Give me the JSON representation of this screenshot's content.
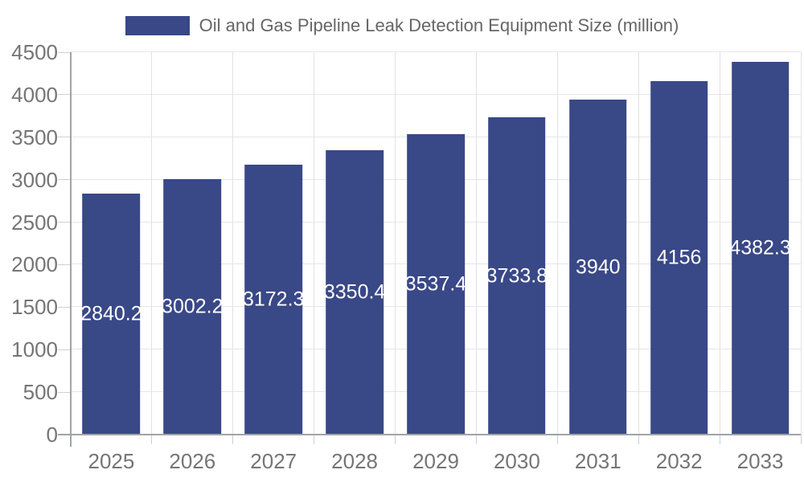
{
  "chart_data": {
    "type": "bar",
    "title": "Oil and Gas Pipeline Leak Detection Equipment Size (million)",
    "categories": [
      "2025",
      "2026",
      "2027",
      "2028",
      "2029",
      "2030",
      "2031",
      "2032",
      "2033"
    ],
    "values": [
      2840.2,
      3002.2,
      3172.3,
      3350.4,
      3537.4,
      3733.8,
      3940,
      4156,
      4382.3
    ],
    "value_labels": [
      "2840.2",
      "3002.2",
      "3172.3",
      "3350.4",
      "3537.4",
      "3733.8",
      "3940",
      "4156",
      "4382.3"
    ],
    "xlabel": "",
    "ylabel": "",
    "ylim": [
      0,
      4500
    ],
    "ytick_step": 500,
    "ytick_labels": [
      "0",
      "500",
      "1000",
      "1500",
      "2000",
      "2500",
      "3000",
      "3500",
      "4000",
      "4500"
    ],
    "grid": true,
    "legend_position": "top",
    "colors": {
      "bar": "#394886",
      "bar_label": "#ffffff",
      "axis_text": "#757575",
      "legend_text": "#666666",
      "gridline": "#e6e6e6",
      "vertical_gridline": "#e2e2e2",
      "axis_line": "#a0a4a8",
      "tick": "#cdd0d3",
      "background": "#ffffff"
    }
  }
}
